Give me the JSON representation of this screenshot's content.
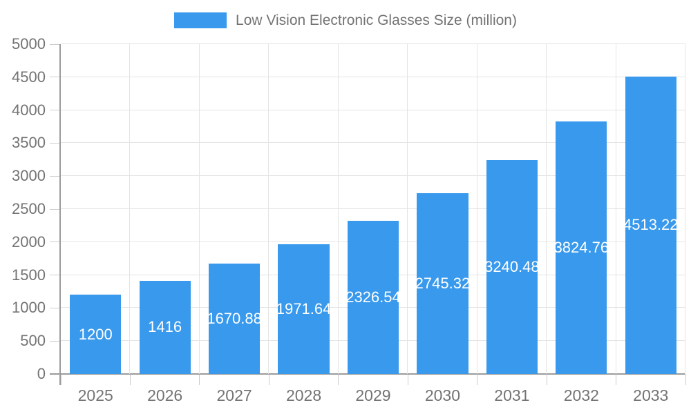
{
  "legend": {
    "label": "Low Vision Electronic Glasses Size (million)"
  },
  "colors": {
    "bar": "#3999ec",
    "grid": "#e4e4e4",
    "axis": "#9b9b9b",
    "tick": "#cccccc",
    "text": "#737373",
    "value_label": "#ffffff",
    "background": "#ffffff"
  },
  "chart_data": {
    "type": "bar",
    "title": "Low Vision Electronic Glasses Size (million)",
    "categories": [
      "2025",
      "2026",
      "2027",
      "2028",
      "2029",
      "2030",
      "2031",
      "2032",
      "2033"
    ],
    "series": [
      {
        "name": "Low Vision Electronic Glasses Size (million)",
        "values": [
          1200,
          1416,
          1670.88,
          1971.64,
          2326.54,
          2745.32,
          3240.48,
          3824.76,
          4513.22
        ]
      }
    ],
    "value_labels": [
      "1200",
      "1416",
      "1670.88",
      "1971.64",
      "2326.54",
      "2745.32",
      "3240.48",
      "3824.76",
      "4513.22"
    ],
    "xlabel": "",
    "ylabel": "",
    "ylim": [
      0,
      5000
    ],
    "ytick_step": 500,
    "yticks": [
      0,
      500,
      1000,
      1500,
      2000,
      2500,
      3000,
      3500,
      4000,
      4500,
      5000
    ],
    "grid": true,
    "legend_position": "top",
    "value_label_position": "inside-center"
  }
}
